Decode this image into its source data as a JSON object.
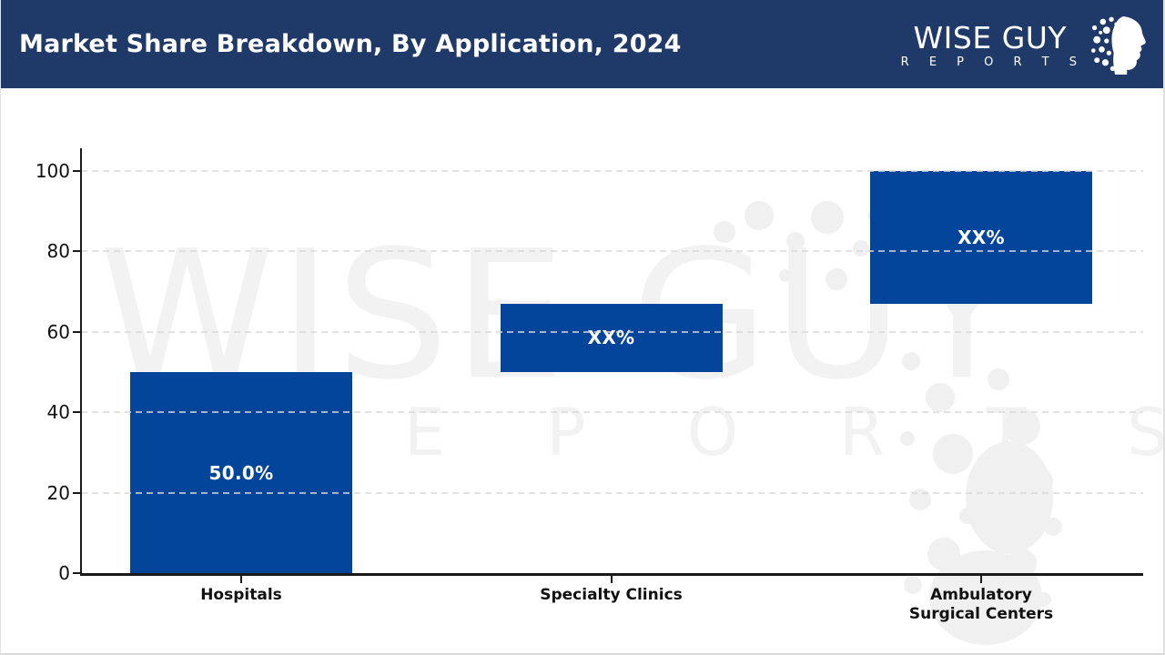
{
  "header": {
    "title": "Market Share Breakdown, By Application, 2024",
    "logo": {
      "line1": "WISE GUY",
      "line2": "R E P O R T S"
    }
  },
  "watermark": {
    "line1": "WISE GUY",
    "line2": "R E P O R T S"
  },
  "chart_data": {
    "type": "bar",
    "variant": "floating-segment-waterfall",
    "title": "Market Share Breakdown, By Application, 2024",
    "categories": [
      "Hospitals",
      "Specialty Clinics",
      "Ambulatory Surgical Centers"
    ],
    "bars": [
      {
        "category": "Hospitals",
        "tick_lines": [
          "Hospitals"
        ],
        "start": 0,
        "end": 50,
        "label": "50.0%"
      },
      {
        "category": "Specialty Clinics",
        "tick_lines": [
          "Specialty Clinics"
        ],
        "start": 50,
        "end": 67,
        "label": "XX%"
      },
      {
        "category": "Ambulatory Surgical Centers",
        "tick_lines": [
          "Ambulatory",
          "Surgical Centers"
        ],
        "start": 67,
        "end": 100,
        "label": "XX%"
      }
    ],
    "y_ticks": [
      0,
      20,
      40,
      60,
      80,
      100
    ],
    "ylim": [
      0,
      105
    ],
    "xlabel": "",
    "ylabel": "",
    "grid": {
      "horizontal": true,
      "style": "dashed"
    },
    "legend": "none",
    "colors": {
      "bar": "#04459c",
      "bar_label": "#ffffff",
      "axis": "#1a1a1a",
      "gridline": "#d9d9d9",
      "header_bg": "#1f3a68",
      "header_text": "#ffffff",
      "watermark": "#f2f2f2"
    }
  }
}
